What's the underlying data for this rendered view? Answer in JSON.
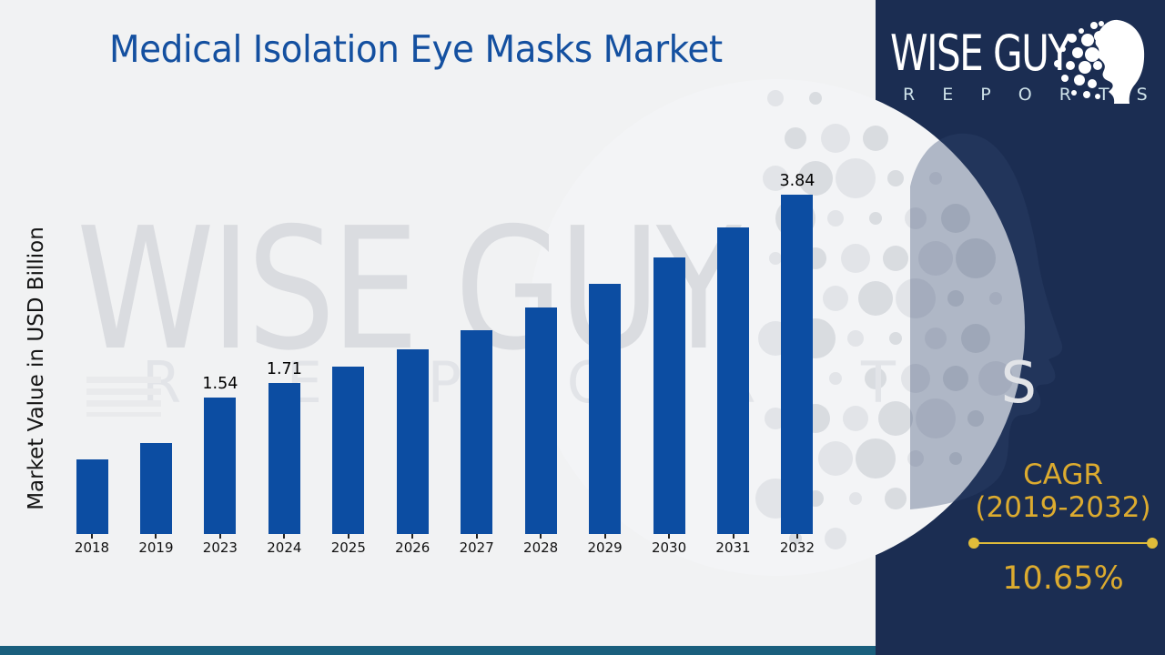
{
  "title": "Medical Isolation Eye Masks Market",
  "y_axis": {
    "label": "Market Value in USD Billion"
  },
  "brand_logo": {
    "line1": "WISE GUY",
    "line2": "R E P O R T S"
  },
  "watermark": {
    "line1": "WISE GUY",
    "line2": "R E P O R T S"
  },
  "sidebar": {
    "cagr_label": "CAGR",
    "cagr_period": "(2019-2032)",
    "cagr_value": "10.65%"
  },
  "colors": {
    "bar": "#0c4da2",
    "panel_navy": "#1b2d52",
    "gold": "#dcab2f",
    "title_blue": "#1450a0",
    "footer_teal": "#1a5f7d",
    "background": "#f1f2f3"
  },
  "chart_data": {
    "type": "bar",
    "categories": [
      "2018",
      "2019",
      "2023",
      "2024",
      "2025",
      "2026",
      "2027",
      "2028",
      "2029",
      "2030",
      "2031",
      "2032"
    ],
    "values": [
      0.84,
      1.03,
      1.54,
      1.71,
      1.89,
      2.09,
      2.31,
      2.56,
      2.83,
      3.13,
      3.47,
      3.84
    ],
    "data_labels": {
      "2023": "1.54",
      "2024": "1.71",
      "2032": "3.84"
    },
    "title": "Medical Isolation Eye Masks Market",
    "xlabel": "",
    "ylabel": "Market Value in USD Billion",
    "ylim": [
      0,
      4.2
    ],
    "unit": "USD Billion",
    "grid": false,
    "legend": "none"
  }
}
